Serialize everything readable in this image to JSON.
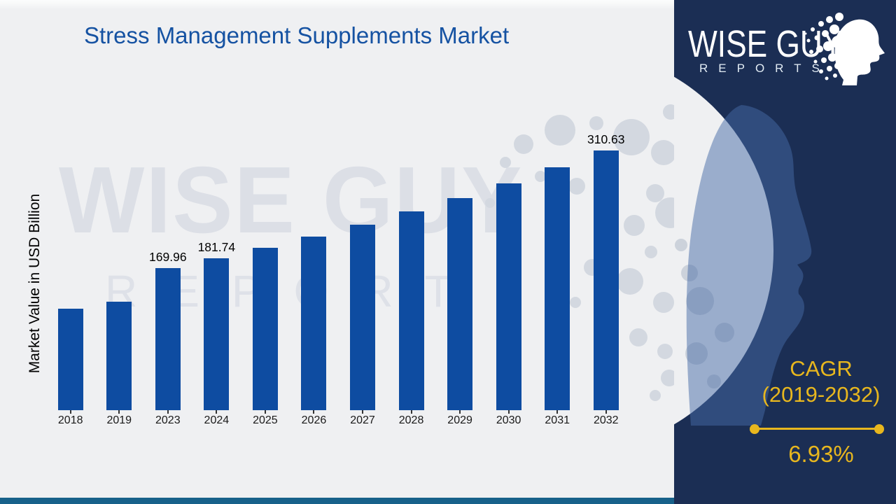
{
  "title": "Stress Management Supplements Market",
  "y_axis_label": "Market Value in USD Billion",
  "watermark": {
    "line1": "WISE GUY",
    "line2": "REPORT"
  },
  "logo": {
    "line1": "WISE GUY",
    "line2": "REPORTS"
  },
  "cagr": {
    "label": "CAGR",
    "range": "(2019-2032)",
    "value": "6.93%"
  },
  "colors": {
    "background": "#eff0f2",
    "bar": "#0e4ca1",
    "title_blue": "#1552a2",
    "panel_navy": "#1b2e54",
    "gold_accent": "#e8b71e",
    "teal_accent": "#17618a",
    "watermark_gray": "#dcdfe6"
  },
  "chart_data": {
    "type": "bar",
    "title": "Stress Management Supplements Market",
    "xlabel": "",
    "ylabel": "Market Value in USD Billion",
    "units": "USD Billion",
    "categories": [
      "2018",
      "2019",
      "2023",
      "2024",
      "2025",
      "2026",
      "2027",
      "2028",
      "2029",
      "2030",
      "2031",
      "2032"
    ],
    "values": [
      121.58,
      130.01,
      169.96,
      181.74,
      194.34,
      207.81,
      222.21,
      237.61,
      254.08,
      271.69,
      290.52,
      310.63
    ],
    "data_labels_shown": {
      "2023": "169.96",
      "2024": "181.74",
      "2032": "310.63"
    },
    "ylim": [
      0,
      330
    ],
    "grid": false,
    "legend": false,
    "bar_color": "#0e4ca1",
    "cagr_annotation": {
      "label": "CAGR",
      "range": "(2019-2032)",
      "value": "6.93%"
    }
  }
}
